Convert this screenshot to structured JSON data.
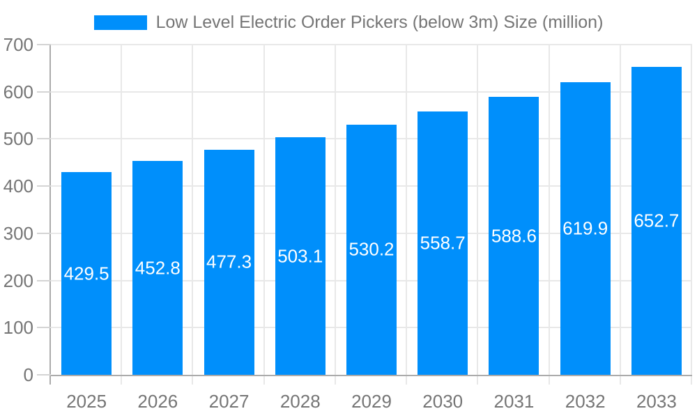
{
  "chart_data": {
    "type": "bar",
    "title": "Low Level Electric Order Pickers (below 3m) Size (million)",
    "categories": [
      "2025",
      "2026",
      "2027",
      "2028",
      "2029",
      "2030",
      "2031",
      "2032",
      "2033"
    ],
    "values": [
      429.5,
      452.8,
      477.3,
      503.1,
      530.2,
      558.7,
      588.6,
      619.9,
      652.7
    ],
    "series_name": "Low Level Electric Order Pickers (below 3m) Size (million)",
    "xlabel": "",
    "ylabel": "",
    "ylim": [
      0,
      700
    ],
    "ytick_step": 100,
    "ytick_labels": [
      "0",
      "100",
      "200",
      "300",
      "400",
      "500",
      "600",
      "700"
    ],
    "grid": "both",
    "legend_position": "top",
    "value_labels_position": "inside-center"
  },
  "colors": {
    "bar": "#008FFB",
    "value_label_text": "#ffffff",
    "axis_text": "#757575",
    "legend_text": "#757575",
    "gridline": "#e8e8e8",
    "axis_line": "#ababab",
    "tick": "#d4d4d4",
    "background": "#ffffff"
  }
}
